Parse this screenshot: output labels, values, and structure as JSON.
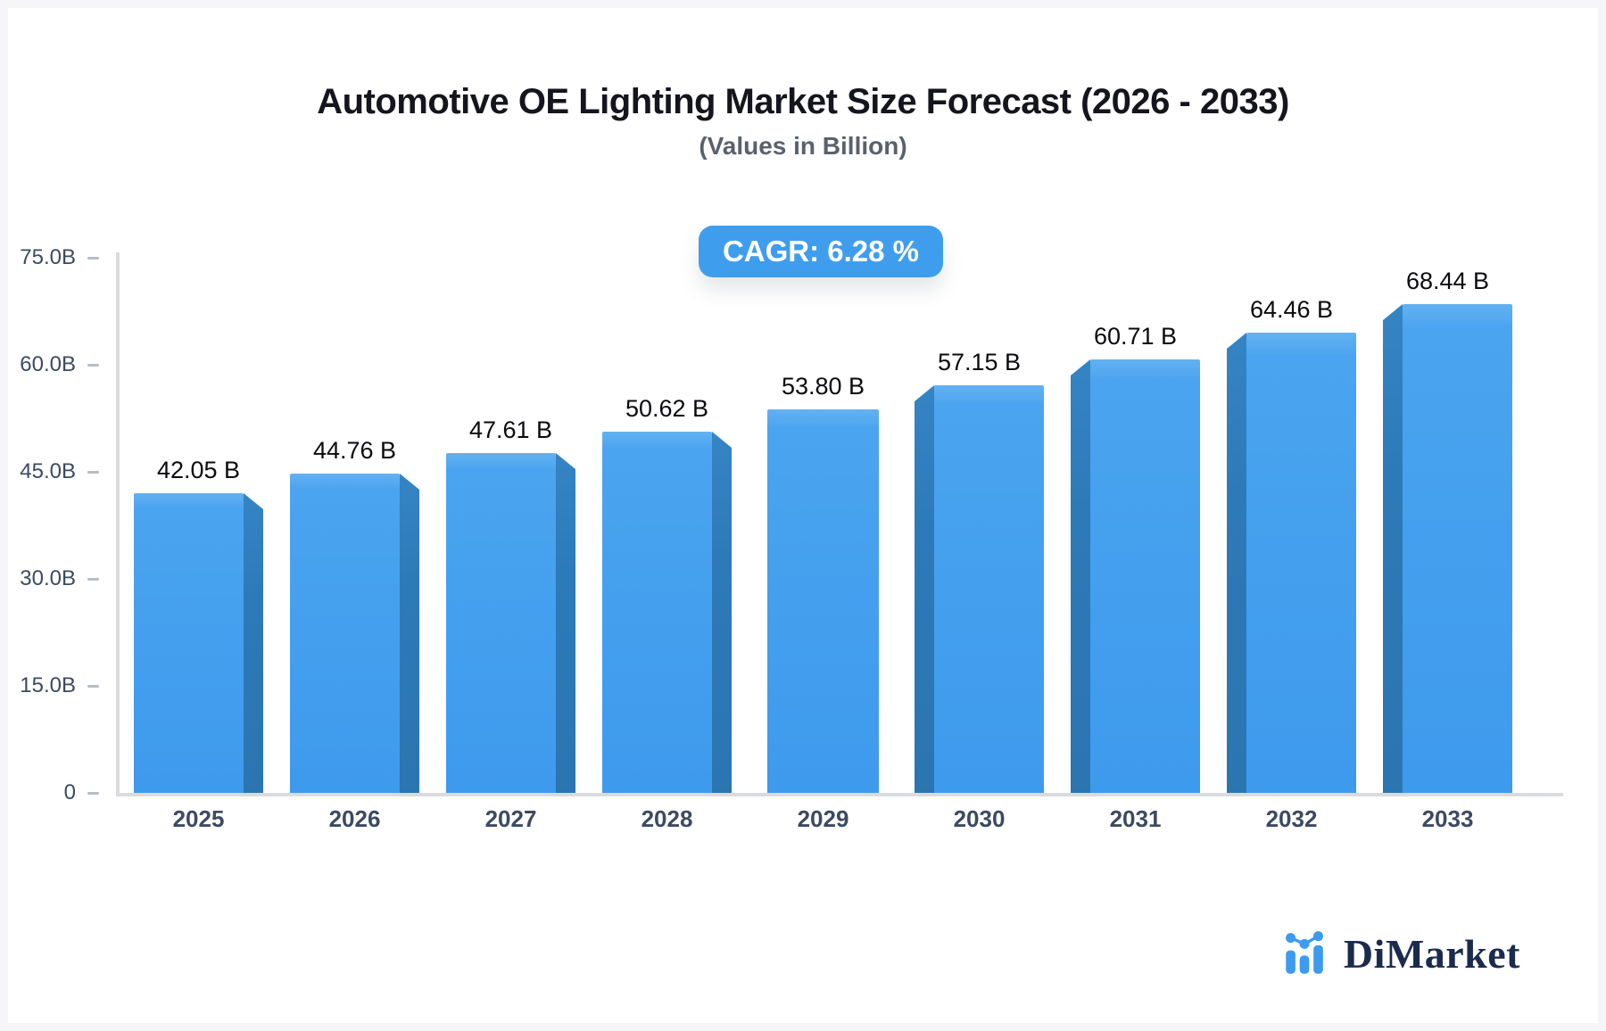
{
  "header": {
    "title": "Automotive OE Lighting Market Size Forecast (2026 - 2033)",
    "subtitle": "(Values in Billion)"
  },
  "badge": {
    "label": "CAGR: 6.28 %"
  },
  "chart_data": {
    "type": "bar",
    "title": "Automotive OE Lighting Market Size Forecast (2026 - 2033)",
    "subtitle": "(Values in Billion)",
    "categories": [
      "2025",
      "2026",
      "2027",
      "2028",
      "2029",
      "2030",
      "2031",
      "2032",
      "2033"
    ],
    "values": [
      42.05,
      44.76,
      47.61,
      50.62,
      53.8,
      57.15,
      60.71,
      64.46,
      68.44
    ],
    "value_labels": [
      "42.05 B",
      "44.76 B",
      "47.61 B",
      "50.62 B",
      "53.80 B",
      "57.15 B",
      "60.71 B",
      "64.46 B",
      "68.44 B"
    ],
    "ylim": [
      0,
      75
    ],
    "yticks": [
      {
        "label": "0",
        "value": 0
      },
      {
        "label": "15.0B",
        "value": 15
      },
      {
        "label": "30.0B",
        "value": 30
      },
      {
        "label": "45.0B",
        "value": 45
      },
      {
        "label": "60.0B",
        "value": 60
      },
      {
        "label": "75.0B",
        "value": 75
      }
    ],
    "grid": false,
    "legend": false,
    "style": "3d-perspective-bars",
    "colors": {
      "bar_face": "#45A0EE",
      "bar_face_top": "#63B1F2",
      "bar_face_bottom": "#3E9AED",
      "bar_side": "#2D7AB8",
      "axis_line": "#D9DBDF",
      "tick_dash": "#B7BCC4",
      "tick_label": "#3C4A61",
      "value_label": "#0B0B0F",
      "badge_bg": "#3F9DEE"
    }
  },
  "branding": {
    "name": "DiMarket",
    "icon": "mini-bar-line-chart-icon",
    "color_primary": "#3C9AEF",
    "color_text": "#1B2B4D"
  }
}
